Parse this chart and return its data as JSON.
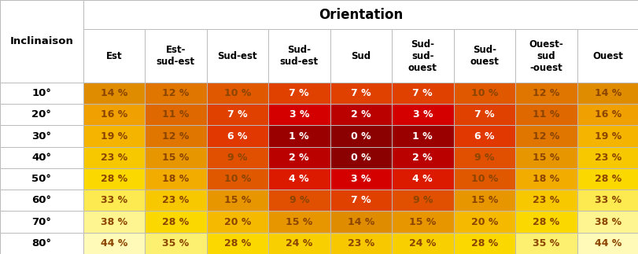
{
  "title": "Orientation",
  "row_header": "Inclinaison",
  "col_headers": [
    "Est",
    "Est-\nsud-est",
    "Sud-est",
    "Sud-\nsud-est",
    "Sud",
    "Sud-\nsud-\nouest",
    "Sud-\nouest",
    "Ouest-\nsud\n-ouest",
    "Ouest"
  ],
  "row_labels": [
    "10°",
    "20°",
    "30°",
    "40°",
    "50°",
    "60°",
    "70°",
    "80°"
  ],
  "values": [
    [
      14,
      12,
      10,
      7,
      7,
      7,
      10,
      12,
      14
    ],
    [
      16,
      11,
      7,
      3,
      2,
      3,
      7,
      11,
      16
    ],
    [
      19,
      12,
      6,
      1,
      0,
      1,
      6,
      12,
      19
    ],
    [
      23,
      15,
      9,
      2,
      0,
      2,
      9,
      15,
      23
    ],
    [
      28,
      18,
      10,
      4,
      3,
      4,
      10,
      18,
      28
    ],
    [
      33,
      23,
      15,
      9,
      7,
      9,
      15,
      23,
      33
    ],
    [
      38,
      28,
      20,
      15,
      14,
      15,
      20,
      28,
      38
    ],
    [
      44,
      35,
      28,
      24,
      23,
      24,
      28,
      35,
      44
    ]
  ],
  "text_values": [
    [
      "14 %",
      "12 %",
      "10 %",
      "7 %",
      "7 %",
      "7 %",
      "10 %",
      "12 %",
      "14 %"
    ],
    [
      "16 %",
      "11 %",
      "7 %",
      "3 %",
      "2 %",
      "3 %",
      "7 %",
      "11 %",
      "16 %"
    ],
    [
      "19 %",
      "12 %",
      "6 %",
      "1 %",
      "0 %",
      "1 %",
      "6 %",
      "12 %",
      "19 %"
    ],
    [
      "23 %",
      "15 %",
      "9 %",
      "2 %",
      "0 %",
      "2 %",
      "9 %",
      "15 %",
      "23 %"
    ],
    [
      "28 %",
      "18 %",
      "10 %",
      "4 %",
      "3 %",
      "4 %",
      "10 %",
      "18 %",
      "28 %"
    ],
    [
      "33 %",
      "23 %",
      "15 %",
      "9 %",
      "7 %",
      "9 %",
      "15 %",
      "23 %",
      "33 %"
    ],
    [
      "38 %",
      "28 %",
      "20 %",
      "15 %",
      "14 %",
      "15 %",
      "20 %",
      "28 %",
      "38 %"
    ],
    [
      "44 %",
      "35 %",
      "28 %",
      "24 %",
      "23 %",
      "24 %",
      "28 %",
      "35 %",
      "44 %"
    ]
  ],
  "color_map": {
    "0": "#8B0000",
    "1": "#9B0000",
    "2": "#BB0000",
    "3": "#D40000",
    "4": "#DC1A00",
    "6": "#E03800",
    "7": "#E04000",
    "9": "#E05000",
    "10": "#E05800",
    "11": "#E06800",
    "12": "#E07500",
    "14": "#E08C00",
    "15": "#E89600",
    "16": "#F0A000",
    "18": "#F2AC00",
    "19": "#F4B400",
    "20": "#F5BA00",
    "23": "#F7C800",
    "24": "#F8CF00",
    "28": "#FAD800",
    "33": "#FCEA50",
    "35": "#FDEF70",
    "38": "#FEF590",
    "44": "#FFFAB8"
  },
  "text_color_dark": "#8B4500",
  "text_color_light": "#ffffff",
  "border_color": "#bbbbbb",
  "title_fontsize": 12,
  "header_fontsize": 8.5,
  "cell_fontsize": 9,
  "row_label_fontsize": 9.5
}
